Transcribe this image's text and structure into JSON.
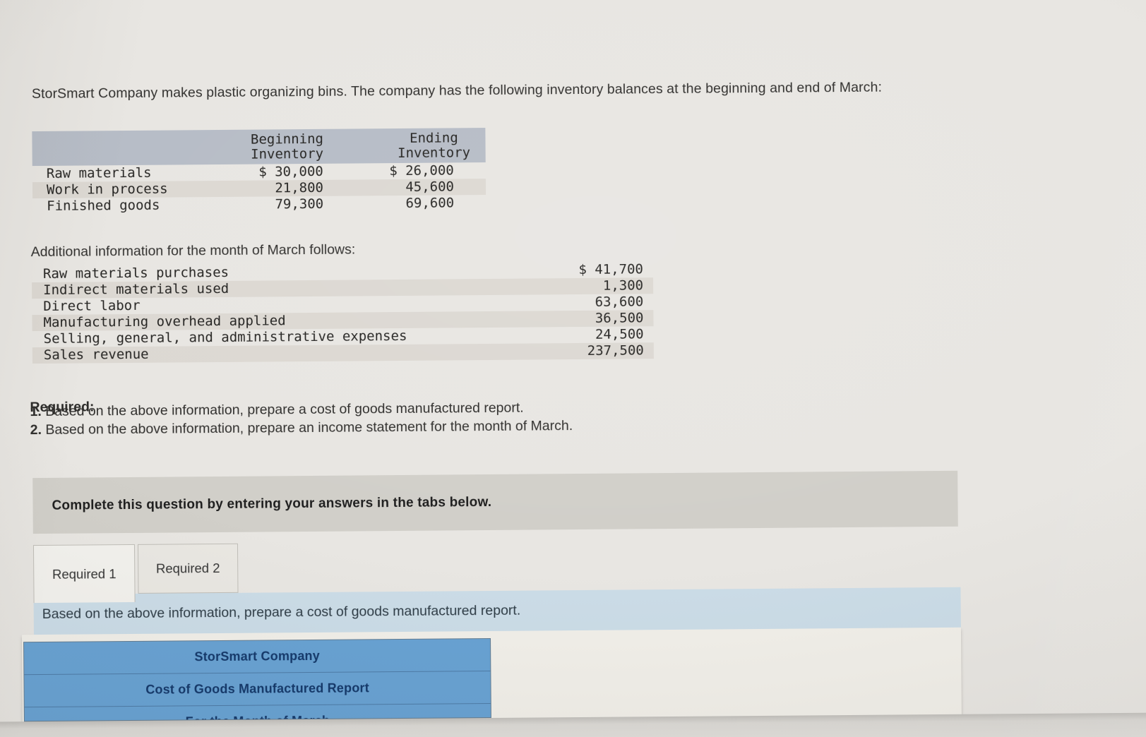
{
  "intro": "StorSmart Company makes plastic organizing bins. The company has the following inventory balances at the beginning and end of March:",
  "inventory_table": {
    "beginning_header": "Beginning Inventory",
    "ending_header_line1": "Ending",
    "ending_header_line2": "Inventory",
    "rows": [
      {
        "label": "Raw materials",
        "beginning": "$ 30,000",
        "ending": "$ 26,000"
      },
      {
        "label": "Work in process",
        "beginning": "21,800",
        "ending": "45,600"
      },
      {
        "label": "Finished goods",
        "beginning": "79,300",
        "ending": "69,600"
      }
    ]
  },
  "additional_info_heading": "Additional information for the month of March follows:",
  "additional_info": [
    {
      "label": "Raw materials purchases",
      "value": "$ 41,700"
    },
    {
      "label": "Indirect materials used",
      "value": "1,300"
    },
    {
      "label": "Direct labor",
      "value": "63,600"
    },
    {
      "label": "Manufacturing overhead applied",
      "value": "36,500"
    },
    {
      "label": "Selling, general, and administrative expenses",
      "value": "24,500"
    },
    {
      "label": "Sales revenue",
      "value": "237,500"
    }
  ],
  "required": {
    "heading": "Required:",
    "items": [
      {
        "num": "1.",
        "text": "Based on the above information, prepare a cost of goods manufactured report."
      },
      {
        "num": "2.",
        "text": "Based on the above information, prepare an income statement for the month of March."
      }
    ]
  },
  "complete_bar": "Complete this question by entering your answers in the tabs below.",
  "tabs": [
    {
      "label": "Required 1",
      "active": true
    },
    {
      "label": "Required 2",
      "active": false
    }
  ],
  "instruction": "Based on the above information, prepare a cost of goods manufactured report.",
  "report": {
    "line1": "StorSmart Company",
    "line2": "Cost of Goods Manufactured Report",
    "line3": "For the Month of March"
  },
  "colors": {
    "page_bg": "#e8e6e2",
    "table_header_bg": "#b6bcc6",
    "row_shade": "#dcd8d2",
    "complete_bar_bg": "#d1cfc9",
    "instruction_bar_bg": "#cbdce7",
    "report_header_bg": "#68a2d3",
    "report_header_text": "#14396b"
  }
}
